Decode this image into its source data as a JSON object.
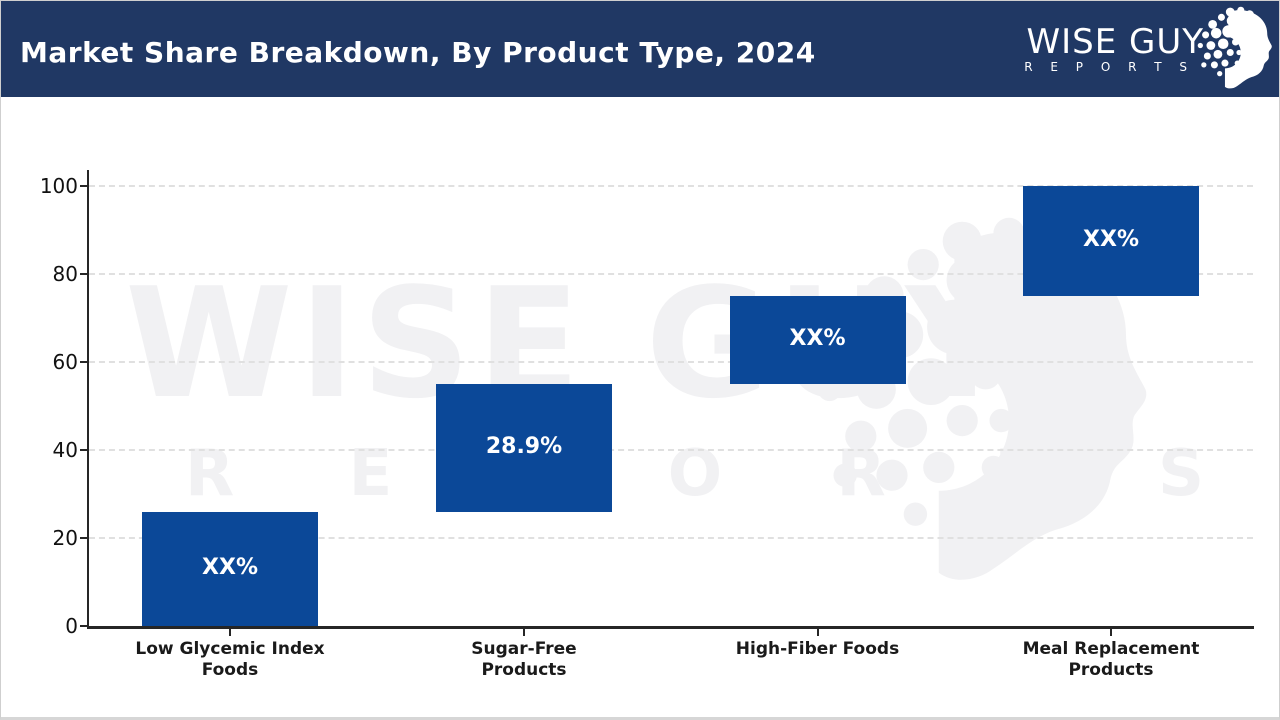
{
  "header": {
    "title": "Market Share Breakdown, By Product Type, 2024",
    "logo": {
      "brand": "WISE GUY",
      "sub": "R E P O R T S"
    }
  },
  "watermark": {
    "line1": "WISE GUY",
    "line2": "R E P O R T S"
  },
  "colors": {
    "header_background": "#203864",
    "bar_blue": "#0b4898",
    "grid_gray": "#e0e0e0",
    "axis_dark": "#262626",
    "watermark_gray": "#f1f1f3",
    "text_white": "#ffffff",
    "text_dark": "#1a1a1a"
  },
  "chart_data": {
    "type": "bar",
    "subtype": "floating-segment-waterfall",
    "title": "Market Share Breakdown, By Product Type, 2024",
    "categories": [
      "Low Glycemic Index\nFoods",
      "Sugar-Free\nProducts",
      "High-Fiber Foods",
      "Meal Replacement\nProducts"
    ],
    "bars": [
      {
        "category": "Low Glycemic Index Foods",
        "start": 0,
        "end": 26,
        "segment_value": 26,
        "value_label": "XX%"
      },
      {
        "category": "Sugar-Free Products",
        "start": 26,
        "end": 54.9,
        "segment_value": 28.9,
        "value_label": "28.9%"
      },
      {
        "category": "High-Fiber Foods",
        "start": 54.9,
        "end": 74.9,
        "segment_value": 20,
        "value_label": "XX%"
      },
      {
        "category": "Meal Replacement Products",
        "start": 74.9,
        "end": 99.9,
        "segment_value": 25,
        "value_label": "XX%"
      }
    ],
    "yticks": [
      0,
      20,
      40,
      60,
      80,
      100
    ],
    "ylim": [
      0,
      100
    ],
    "xlabel": "",
    "ylabel": "",
    "grid": "horizontal-dashed",
    "legend": "none",
    "bar_color": "#0b4898"
  }
}
